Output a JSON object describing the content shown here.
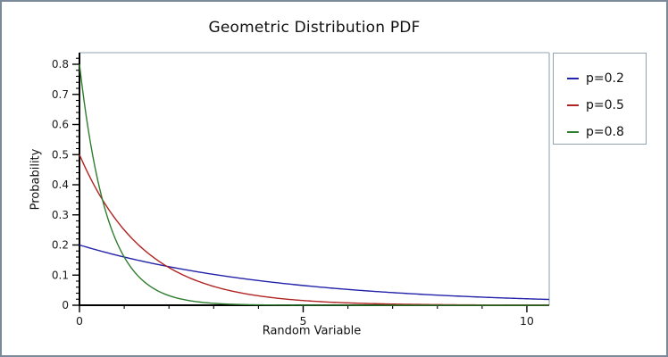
{
  "window": {
    "background": "#ffffff",
    "outer_border_color": "#7b8a99"
  },
  "chart_data": {
    "type": "line",
    "title": "Geometric Distribution PDF",
    "xlabel": "Random Variable",
    "ylabel": "Probability",
    "x_range": [
      0,
      10.5
    ],
    "y_range": [
      0,
      0.8385
    ],
    "grid": false,
    "legend_position": "outside-right",
    "x_major_ticks": [
      0,
      5,
      10
    ],
    "x_major_labels": [
      "0",
      "5",
      "10"
    ],
    "x_minor_ticks": [
      1,
      2,
      3,
      4,
      6,
      7,
      8,
      9
    ],
    "y_major_ticks": [
      0,
      0.1,
      0.2,
      0.3,
      0.4,
      0.5,
      0.6,
      0.7,
      0.8
    ],
    "y_major_labels": [
      "0",
      "0.1",
      "0.2",
      "0.3",
      "0.4",
      "0.5",
      "0.6",
      "0.7",
      "0.8"
    ],
    "y_minor_step": 0.02,
    "series": [
      {
        "name": "p=0.2",
        "p": 0.2,
        "color": "#2222aa",
        "x": [
          0,
          1,
          2,
          3,
          4,
          5,
          6,
          7,
          8,
          9,
          10
        ],
        "y": [
          0.2,
          0.16,
          0.128,
          0.1024,
          0.08192,
          0.065536,
          0.052429,
          0.041943,
          0.033554,
          0.026844,
          0.021475
        ]
      },
      {
        "name": "p=0.5",
        "p": 0.5,
        "color": "#b02323",
        "x": [
          0,
          1,
          2,
          3,
          4,
          5,
          6,
          7,
          8,
          9,
          10
        ],
        "y": [
          0.5,
          0.25,
          0.125,
          0.0625,
          0.03125,
          0.015625,
          0.007813,
          0.003906,
          0.001953,
          0.000977,
          0.000488
        ]
      },
      {
        "name": "p=0.8",
        "p": 0.8,
        "color": "#2f7d2f",
        "x": [
          0,
          1,
          2,
          3,
          4,
          5,
          6,
          7,
          8,
          9,
          10
        ],
        "y": [
          0.8,
          0.16,
          0.032,
          0.0064,
          0.00128,
          0.000256,
          5.12e-05,
          1.02e-05,
          2e-06,
          4e-07,
          1e-07
        ]
      }
    ],
    "colors": {
      "axis": "#000000",
      "frame": "#b3c2ce",
      "tick_label": "#1a1a1a",
      "legend_border": "#93a2b1"
    }
  }
}
